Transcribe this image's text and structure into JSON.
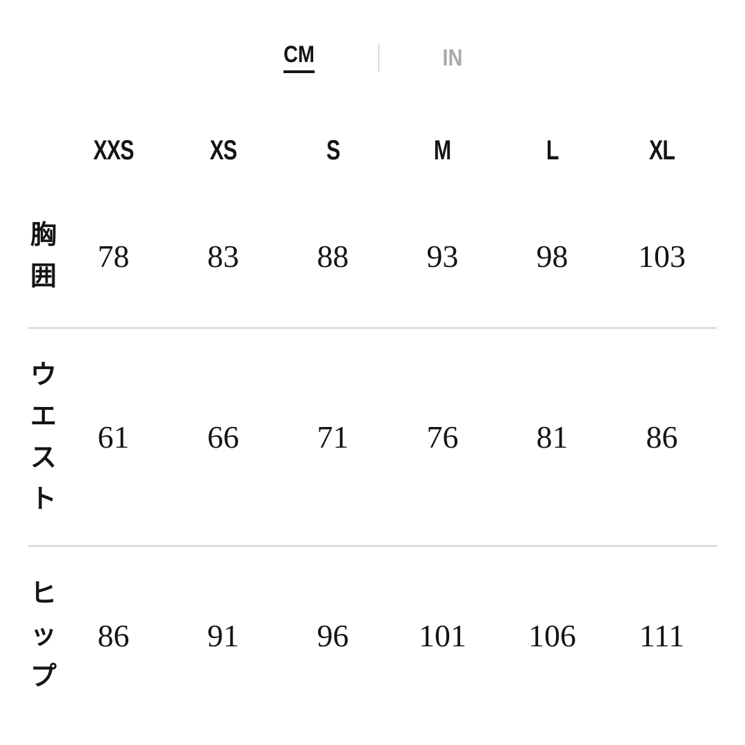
{
  "unit_toggle": {
    "options": [
      {
        "label": "CM",
        "selected": true
      },
      {
        "label": "IN",
        "selected": false
      }
    ]
  },
  "size_chart": {
    "columns": [
      "XXS",
      "XS",
      "S",
      "M",
      "L",
      "XL"
    ],
    "rows": [
      {
        "label": "胸囲",
        "values": [
          "78",
          "83",
          "88",
          "93",
          "98",
          "103"
        ]
      },
      {
        "label": "ウエスト",
        "values": [
          "61",
          "66",
          "71",
          "76",
          "81",
          "86"
        ]
      },
      {
        "label": "ヒップ",
        "values": [
          "86",
          "91",
          "96",
          "101",
          "106",
          "111"
        ]
      }
    ]
  },
  "colors": {
    "text": "#141414",
    "inactive_unit": "#a8a8a8",
    "divider": "#dcdcdc"
  }
}
